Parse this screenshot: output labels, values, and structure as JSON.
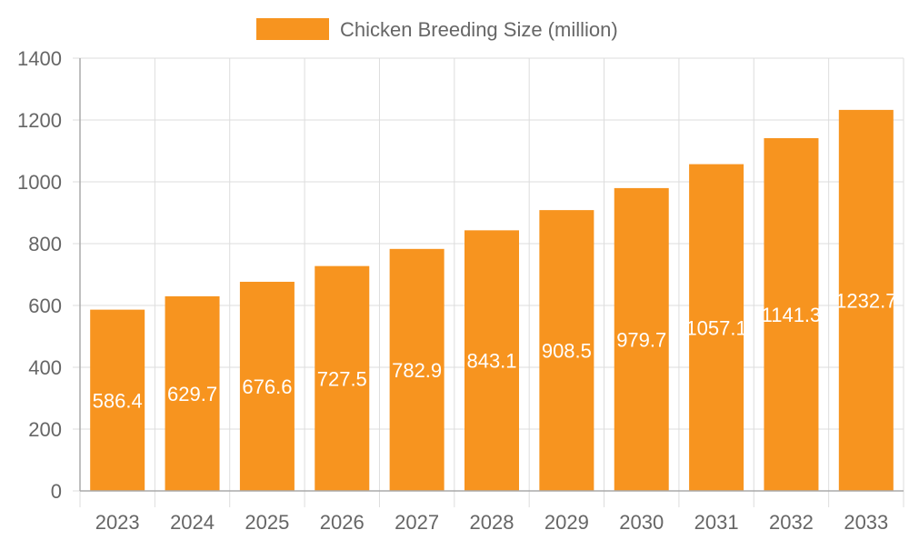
{
  "chart_data": {
    "type": "bar",
    "categories": [
      "2023",
      "2024",
      "2025",
      "2026",
      "2027",
      "2028",
      "2029",
      "2030",
      "2031",
      "2032",
      "2033"
    ],
    "series": [
      {
        "name": "Chicken Breeding Size (million)",
        "values": [
          586.4,
          629.7,
          676.6,
          727.5,
          782.9,
          843.1,
          908.5,
          979.7,
          1057.1,
          1141.3,
          1232.7
        ]
      }
    ],
    "ylim": [
      0,
      1400
    ],
    "yticks": [
      0,
      200,
      400,
      600,
      800,
      1000,
      1200,
      1400
    ],
    "grid": true,
    "legend": "top",
    "data_labels": true,
    "colors": {
      "bar": "#f7941f",
      "grid": "#dddddd",
      "axis": "#aaaaaa",
      "text": "#666666",
      "label": "#ffffff"
    }
  }
}
